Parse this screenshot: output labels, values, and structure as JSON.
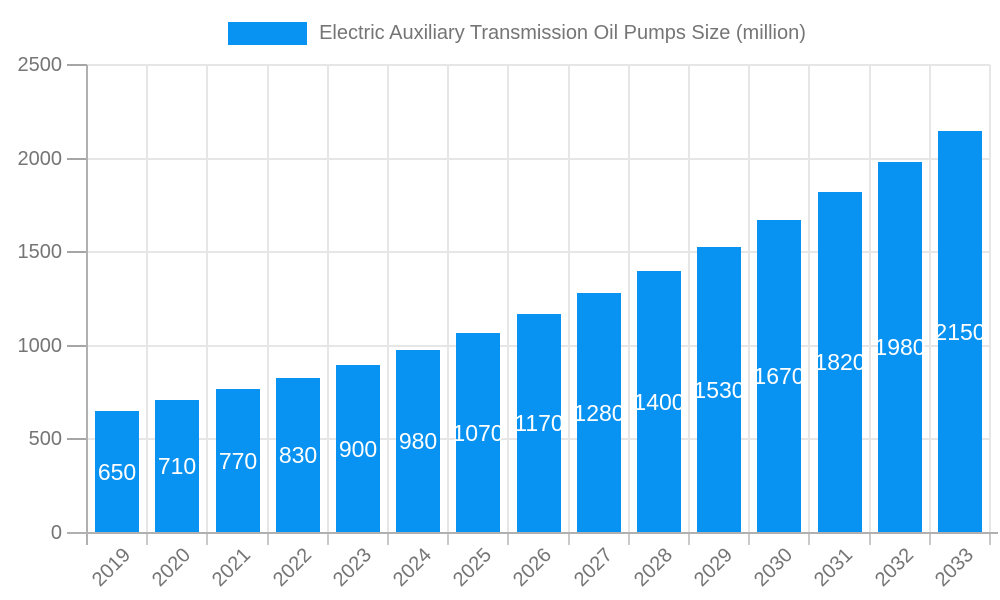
{
  "legend": {
    "label": "Electric Auxiliary Transmission Oil Pumps Size (million)"
  },
  "colors": {
    "bar": "#0892f2",
    "muted_text": "#757575",
    "grid": "#e6e6e6",
    "axis": "#b0b0b0",
    "y_tick": "#a6a6a6",
    "x_tick": "#c9c9c9",
    "value_label": "#ffffff",
    "background": "#ffffff"
  },
  "chart_data": {
    "type": "bar",
    "title": "Electric Auxiliary Transmission Oil Pumps Size (million)",
    "series_name": "Electric Auxiliary Transmission Oil Pumps Size (million)",
    "categories": [
      "2019",
      "2020",
      "2021",
      "2022",
      "2023",
      "2024",
      "2025",
      "2026",
      "2027",
      "2028",
      "2029",
      "2030",
      "2031",
      "2032",
      "2033"
    ],
    "values": [
      650,
      710,
      770,
      830,
      900,
      980,
      1070,
      1170,
      1280,
      1400,
      1530,
      1670,
      1820,
      1980,
      2150
    ],
    "xlabel": "",
    "ylabel": "",
    "ylim": [
      0,
      2500
    ],
    "yticks": [
      0,
      500,
      1000,
      1500,
      2000,
      2500
    ],
    "grid": "horizontal and vertical gridlines on",
    "legend_position": "top-center",
    "value_labels": "white, centered inside bars",
    "x_tick_rotation": -45
  }
}
